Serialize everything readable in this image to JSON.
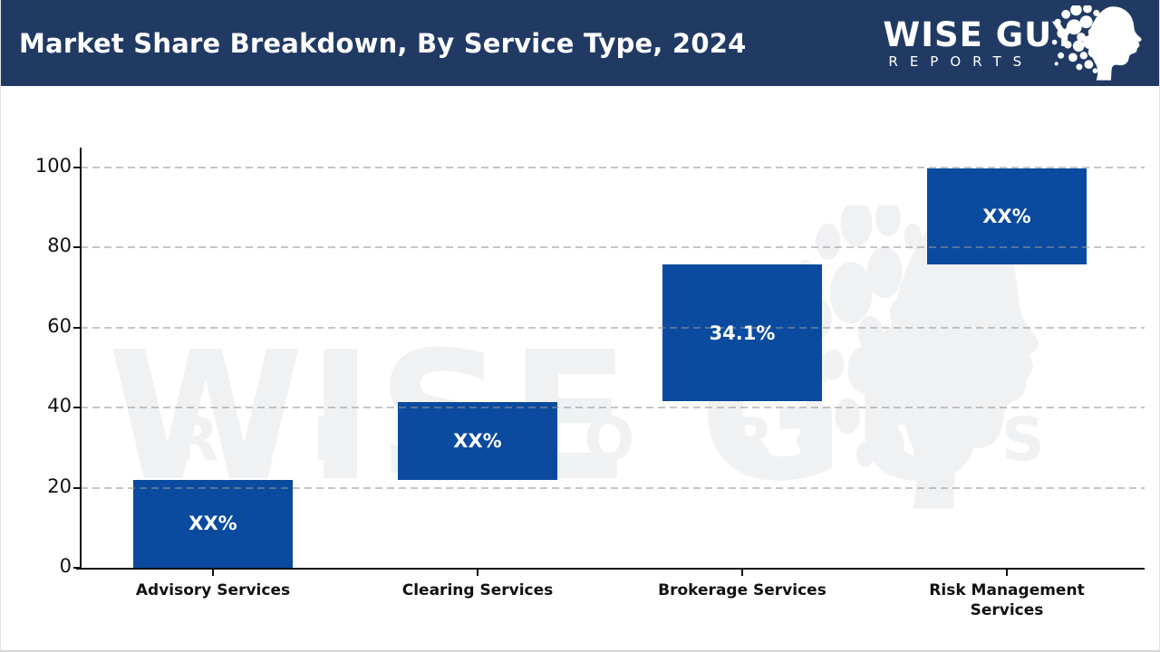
{
  "header": {
    "title": "Market Share Breakdown, By Service Type, 2024",
    "brand": {
      "line1": "WISE GUY",
      "line2": "REPORTS"
    }
  },
  "watermark": {
    "line1": "WISE GU",
    "line2": "R E P O R T S"
  },
  "chart_data": {
    "type": "bar",
    "subtype": "waterfall",
    "title": "Market Share Breakdown, By Service Type, 2024",
    "categories": [
      "Advisory Services",
      "Clearing Services",
      "Brokerage Services",
      "Risk Management Services"
    ],
    "segments": [
      [
        0,
        22.0
      ],
      [
        22.0,
        41.5
      ],
      [
        41.6,
        75.7
      ],
      [
        75.8,
        99.8
      ]
    ],
    "bar_labels": [
      "XX%",
      "XX%",
      "34.1%",
      "XX%"
    ],
    "values_shown": [
      22.0,
      19.5,
      34.1,
      24.0
    ],
    "xlabel": "",
    "ylabel": "",
    "ylim": [
      0,
      100
    ],
    "yticks": [
      0,
      20,
      40,
      60,
      80,
      100
    ],
    "grid": "horizontal dashed",
    "legend": "none",
    "bar_color": "#0b4b9f",
    "label_color": "#ffffff"
  },
  "colors": {
    "header_bg": "#203a64",
    "bar": "#0b4b9f",
    "axis": "#111111",
    "gridline": "#c9c9c9",
    "watermark": "#f0f1f3",
    "background": "#ffffff"
  }
}
